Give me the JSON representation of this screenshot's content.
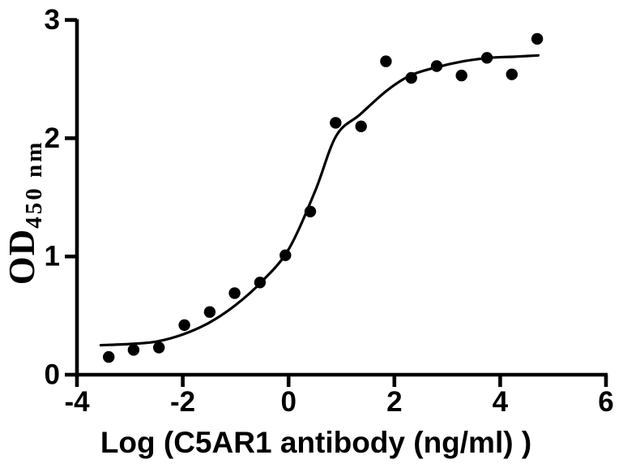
{
  "figure": {
    "background_color": "#ffffff",
    "foreground_color": "#000000"
  },
  "chart_data": {
    "type": "scatter",
    "title": "",
    "xlabel": "Log (C5AR1 antibody (ng/ml) )",
    "ylabel": "OD",
    "ylabel_subscript": "450 nm",
    "xlim": [
      -4,
      6
    ],
    "ylim": [
      0,
      3
    ],
    "x_ticks": [
      "-4",
      "-2",
      "0",
      "2",
      "4",
      "6"
    ],
    "y_ticks": [
      "0",
      "1",
      "2",
      "3"
    ],
    "grid": false,
    "legend": "none",
    "marker": "filled-circle",
    "point_color": "#000000",
    "curve_color": "#000000",
    "axis_color": "#000000",
    "points": [
      [
        -3.4,
        0.15
      ],
      [
        -2.93,
        0.21
      ],
      [
        -2.45,
        0.23
      ],
      [
        -1.97,
        0.42
      ],
      [
        -1.49,
        0.53
      ],
      [
        -1.02,
        0.69
      ],
      [
        -0.54,
        0.78
      ],
      [
        -0.06,
        1.01
      ],
      [
        0.41,
        1.38
      ],
      [
        0.89,
        2.13
      ],
      [
        1.37,
        2.1
      ],
      [
        1.84,
        2.65
      ],
      [
        2.32,
        2.51
      ],
      [
        2.8,
        2.61
      ],
      [
        3.27,
        2.53
      ],
      [
        3.75,
        2.68
      ],
      [
        4.22,
        2.54
      ],
      [
        4.7,
        2.84
      ]
    ],
    "fit_curve_samples": [
      [
        -3.55,
        0.25
      ],
      [
        -3.0,
        0.26
      ],
      [
        -2.5,
        0.28
      ],
      [
        -2.0,
        0.34
      ],
      [
        -1.5,
        0.44
      ],
      [
        -1.0,
        0.59
      ],
      [
        -0.5,
        0.79
      ],
      [
        0.0,
        1.06
      ],
      [
        0.5,
        1.55
      ],
      [
        0.9,
        2.02
      ],
      [
        1.35,
        2.2
      ],
      [
        1.85,
        2.4
      ],
      [
        2.3,
        2.53
      ],
      [
        2.8,
        2.6
      ],
      [
        3.3,
        2.65
      ],
      [
        3.8,
        2.68
      ],
      [
        4.3,
        2.69
      ],
      [
        4.72,
        2.7
      ]
    ]
  }
}
